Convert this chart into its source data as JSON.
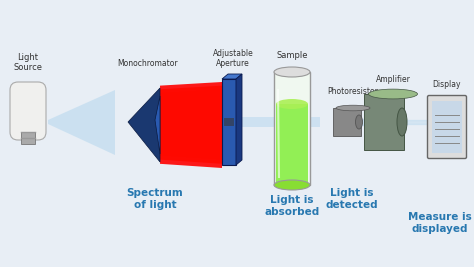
{
  "background_color": "#e8eef5",
  "dark_color": "#333333",
  "blue_label_color": "#2878b0",
  "prism_dark": "#1a3870",
  "prism_mid": "#2a5ab0",
  "aperture_color": "#2a5ab0",
  "beam_color": "#b8d8ee",
  "photoresistor_color": "#888888",
  "amplifier_body": "#778877",
  "amplifier_top": "#99bb88",
  "display_bg": "#f0f0f0",
  "display_screen": "#c8d8e8",
  "tube_outline": "#999999",
  "tube_liquid": "#88ee44",
  "tube_top_cap": "#cccccc",
  "bulb_color": "#f0f0ee",
  "bulb_base": "#aaaaaa",
  "component_labels": {
    "light_source": "Light\nSource",
    "monochromator": "Monochromator",
    "aperture": "Adjustable\nAperture",
    "sample": "Sample",
    "photoresistor": "Photoresistor",
    "amplifier": "Amplifier",
    "display": "Display"
  },
  "blue_labels": {
    "spectrum": "Spectrum\nof light",
    "absorbed": "Light is\nabsorbed",
    "detected": "Light is\ndetected",
    "measure": "Measure is\ndisplayed"
  },
  "rainbow_colors": [
    "#cc00cc",
    "#9900ff",
    "#4400ff",
    "#0066ff",
    "#00ccff",
    "#00ffaa",
    "#aaff00",
    "#ffff00",
    "#ffaa00",
    "#ff5500",
    "#ff0000"
  ],
  "figsize": [
    4.74,
    2.67
  ],
  "dpi": 100
}
